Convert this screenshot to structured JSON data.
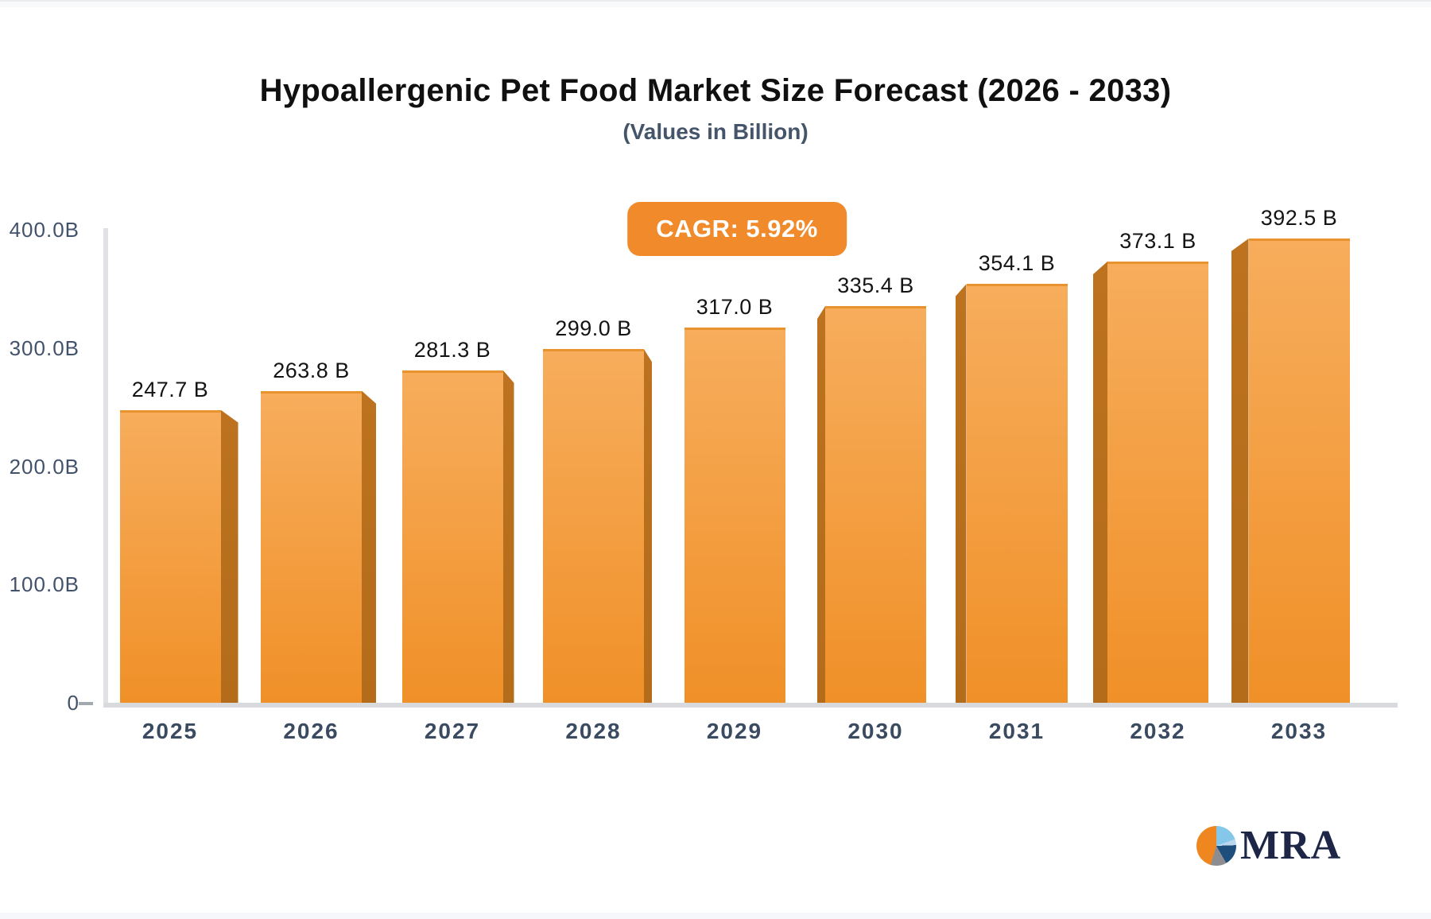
{
  "header": {
    "title": "Hypoallergenic Pet Food Market Size Forecast (2026 - 2033)",
    "subtitle": "(Values in Billion)"
  },
  "badge": {
    "label": "CAGR: 5.92%",
    "bg": "#F18A2B",
    "text_color": "#FFFFFF"
  },
  "chart_data": {
    "type": "bar",
    "title": "Hypoallergenic Pet Food Market Size Forecast (2026 - 2033)",
    "subtitle": "(Values in Billion)",
    "categories": [
      "2025",
      "2026",
      "2027",
      "2028",
      "2029",
      "2030",
      "2031",
      "2032",
      "2033"
    ],
    "values": [
      247.7,
      263.8,
      281.3,
      299.0,
      317.0,
      335.4,
      354.1,
      373.1,
      392.5
    ],
    "bar_labels": [
      "247.7 B",
      "263.8 B",
      "281.3 B",
      "299.0 B",
      "317.0 B",
      "335.4 B",
      "354.1 B",
      "373.1 B",
      "392.5 B"
    ],
    "xlabel": "",
    "ylabel": "",
    "ylim": [
      0,
      400
    ],
    "y_ticks": [
      {
        "label": "400.0B",
        "value": 400
      },
      {
        "label": "300.0B",
        "value": 300
      },
      {
        "label": "200.0B",
        "value": 200
      },
      {
        "label": "100.0B",
        "value": 100
      },
      {
        "label": "0",
        "value": 0
      }
    ],
    "grid": false,
    "legend": false,
    "annotation": "CAGR: 5.92%",
    "colors": {
      "bar_front_top": "#F7AD5C",
      "bar_front_bottom": "#F09028",
      "bar_top_edge": "#E8932E",
      "bar_side": "#BC721E",
      "axis_line": "#D9DADE",
      "tick_text": "#42526B",
      "category_text": "#3A4A60",
      "value_text": "#141414"
    }
  },
  "logo": {
    "text": "MRA",
    "text_color": "#1D2646",
    "pie_colors": {
      "light_blue": "#85C7E9",
      "pale_blue": "#BBD8EC",
      "navy": "#1E4E7C",
      "gray": "#8D8D91",
      "orange": "#F0861F"
    }
  }
}
